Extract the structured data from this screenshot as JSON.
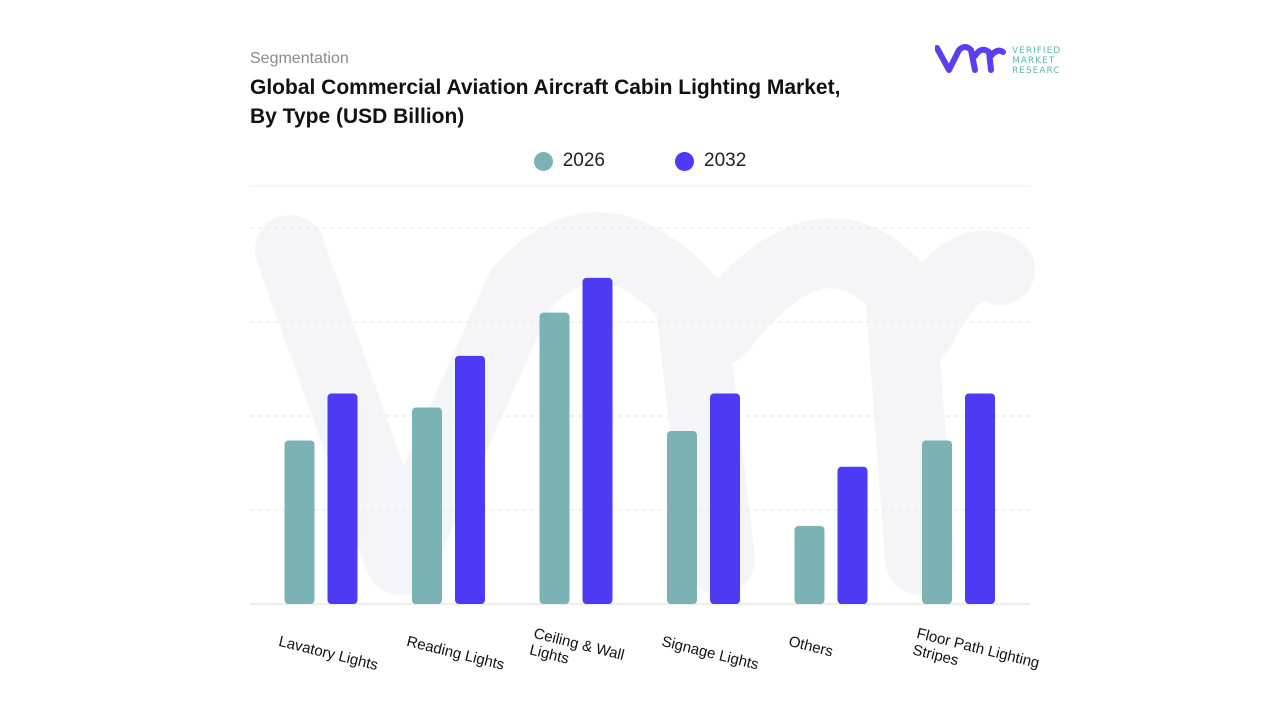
{
  "header": {
    "segment_label": "Segmentation",
    "title": "Global Commercial Aviation Aircraft Cabin Lighting Market, By Type (USD Billion)"
  },
  "logo": {
    "text_lines": [
      "VERIFIED",
      "MARKET",
      "RESEARCH"
    ],
    "mark": "vmr"
  },
  "colors": {
    "series_2026": "#7bb3b5",
    "series_2032": "#4d3af5",
    "grid": "#e3e3e3",
    "logo_purple": "#5a3ff0",
    "logo_teal": "#5bb8b0"
  },
  "chart_data": {
    "type": "bar",
    "title": "Global Commercial Aviation Aircraft Cabin Lighting Market, By Type (USD Billion)",
    "xlabel": "",
    "ylabel": "",
    "ylim": [
      0,
      4
    ],
    "grid": true,
    "legend_placement": "top",
    "categories": [
      "Lavatory Lights",
      "Reading Lights",
      "Ceiling & Wall Lights",
      "Signage Lights",
      "Others",
      "Floor Path Lighting Stripes"
    ],
    "series": [
      {
        "name": "2026",
        "color": "#7bb3b5",
        "values": [
          1.74,
          2.09,
          3.1,
          1.84,
          0.83,
          1.74
        ]
      },
      {
        "name": "2032",
        "color": "#4d3af5",
        "values": [
          2.24,
          2.64,
          3.47,
          2.24,
          1.46,
          2.24
        ]
      }
    ]
  }
}
